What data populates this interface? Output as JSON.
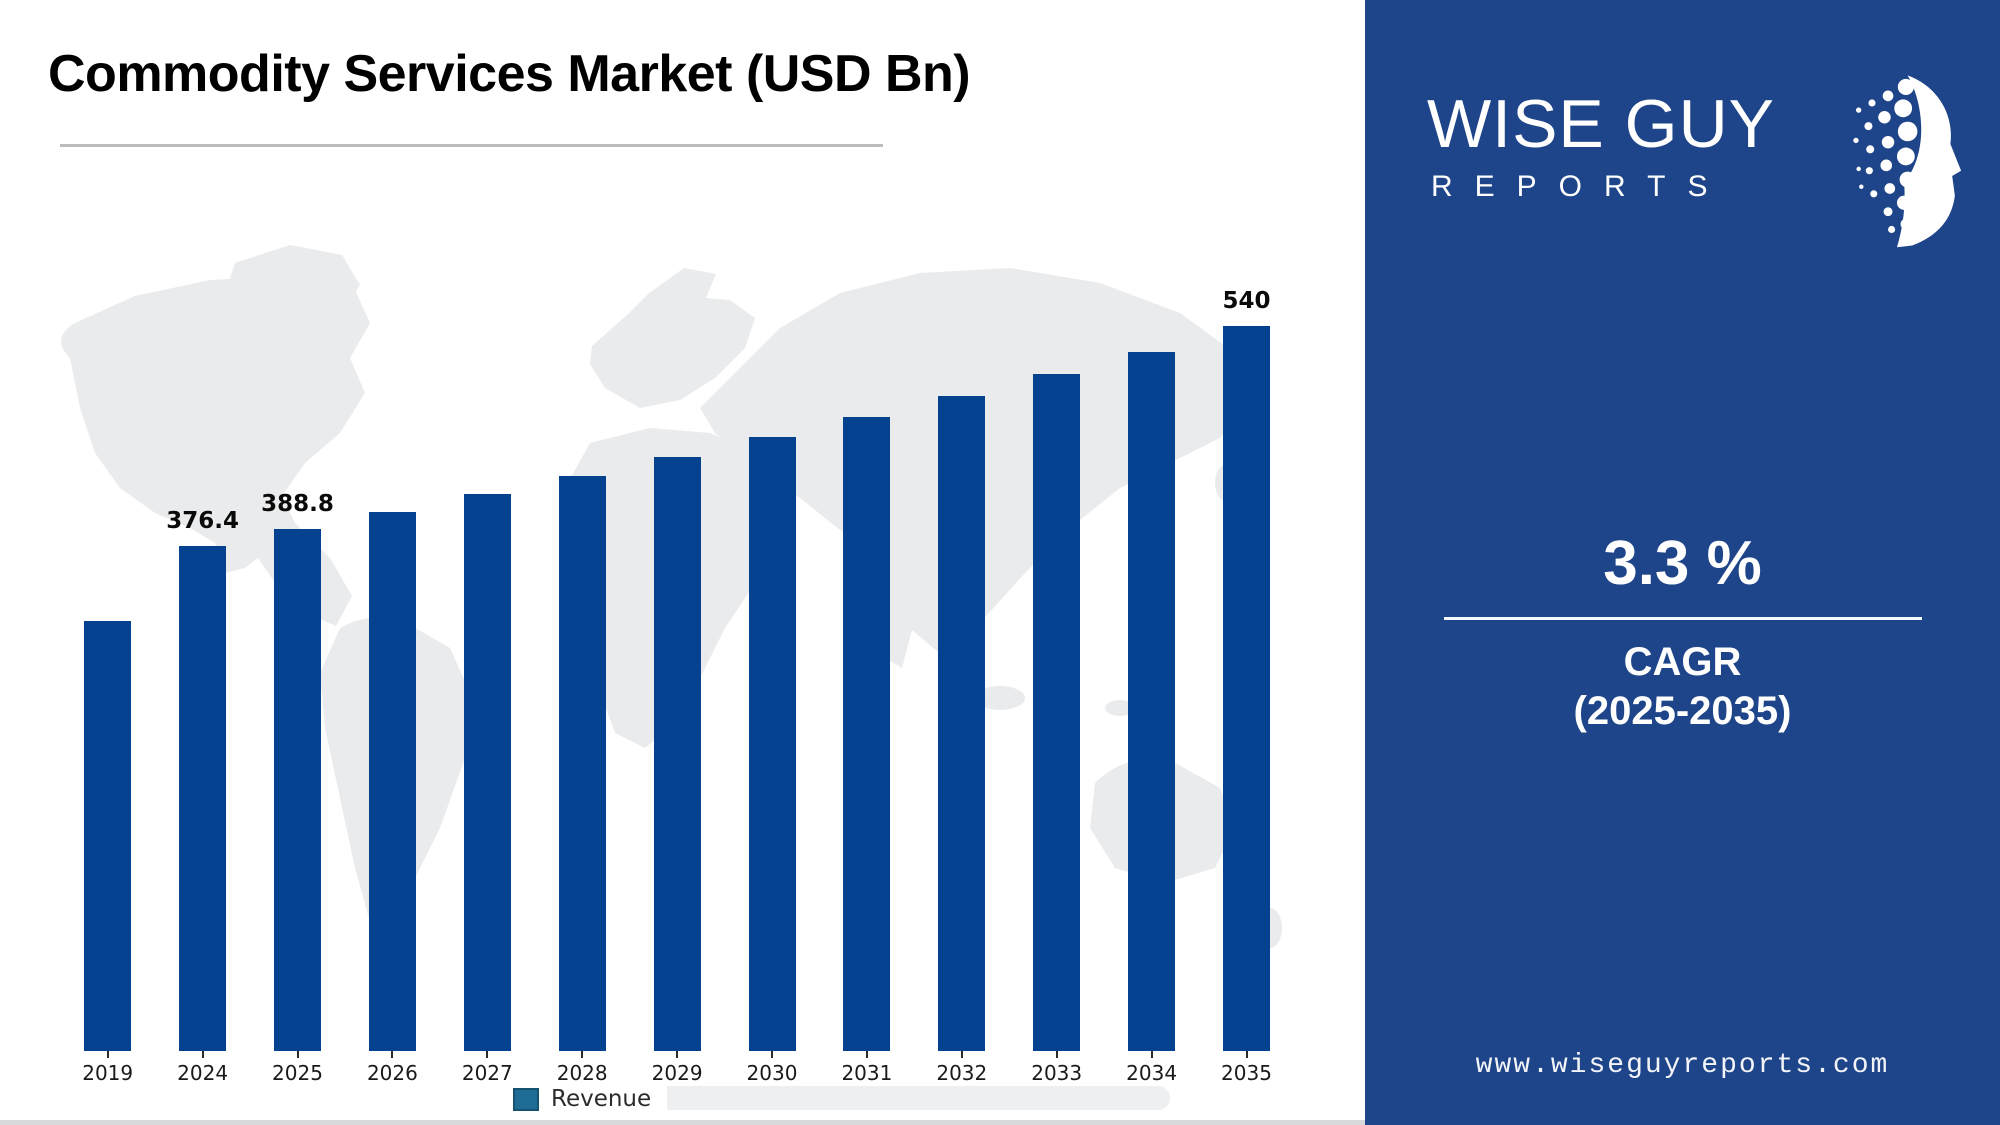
{
  "chart_data": {
    "type": "bar",
    "title": "Commodity Services Market (USD Bn)",
    "categories": [
      "2019",
      "2024",
      "2025",
      "2026",
      "2027",
      "2028",
      "2029",
      "2030",
      "2031",
      "2032",
      "2033",
      "2034",
      "2035"
    ],
    "series": [
      {
        "name": "Revenue",
        "values": [
          320.4,
          376.4,
          388.8,
          401.6,
          414.9,
          428.6,
          442.7,
          457.3,
          472.4,
          488.0,
          504.1,
          520.7,
          540
        ]
      }
    ],
    "value_labels": [
      "",
      "376.4",
      "388.8",
      "",
      "",
      "",
      "",
      "",
      "",
      "",
      "",
      "",
      "540"
    ],
    "xlabel": "",
    "ylabel": "",
    "ylim": [
      0,
      560
    ],
    "grid": false,
    "axis_visible": false,
    "bar_color": "#04418f",
    "legend": {
      "label": "Revenue",
      "position": "bottom",
      "swatch_color": "#1e6b96"
    }
  },
  "colors": {
    "panel_background": "#1e4489",
    "map_silhouette": "#e9ebed",
    "divider": "#bdbdbd"
  },
  "panel": {
    "logo": {
      "line1": "WISE GUY",
      "line2": "REPORTS"
    },
    "cagr": {
      "value": "3.3 %",
      "label1": "CAGR",
      "label2": "(2025-2035)"
    },
    "website": "www.wiseguyreports.com"
  }
}
